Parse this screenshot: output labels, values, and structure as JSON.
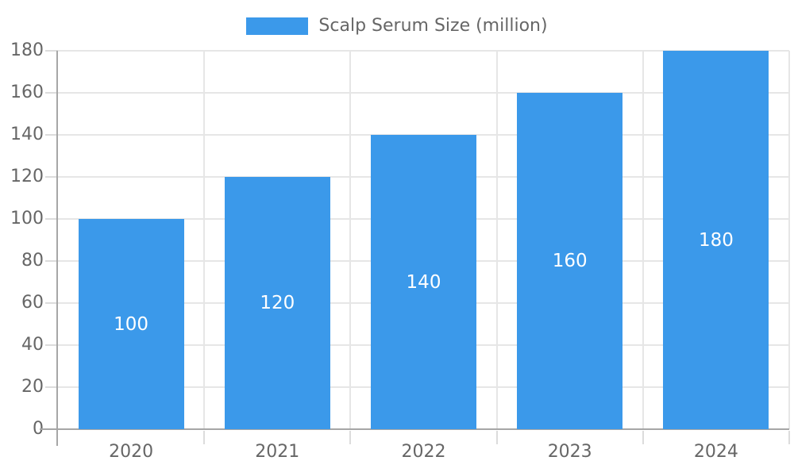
{
  "legend": {
    "items": [
      {
        "label": "Scalp Serum Size (million)",
        "color": "#3B99EA"
      }
    ]
  },
  "chart_data": {
    "type": "bar",
    "title": "",
    "categories": [
      "2020",
      "2021",
      "2022",
      "2023",
      "2024"
    ],
    "series": [
      {
        "name": "Scalp Serum Size (million)",
        "values": [
          100,
          120,
          140,
          160,
          180
        ],
        "color": "#3B99EA"
      }
    ],
    "xlabel": "",
    "ylabel": "",
    "ylim": [
      0,
      180
    ],
    "ytick_step": 20,
    "yticks": [
      0,
      20,
      40,
      60,
      80,
      100,
      120,
      140,
      160,
      180
    ],
    "grid": true,
    "legend_position": "top-center",
    "bar_labels_position": "inside-center",
    "bar_label_color": "#ffffff",
    "colors": {
      "bar": "#3B99EA",
      "grid": "#e6e6e6",
      "minor_tick": "#dcdcdc",
      "axis": "#a6a6a6",
      "tick_text": "#666666",
      "background": "#ffffff"
    }
  }
}
